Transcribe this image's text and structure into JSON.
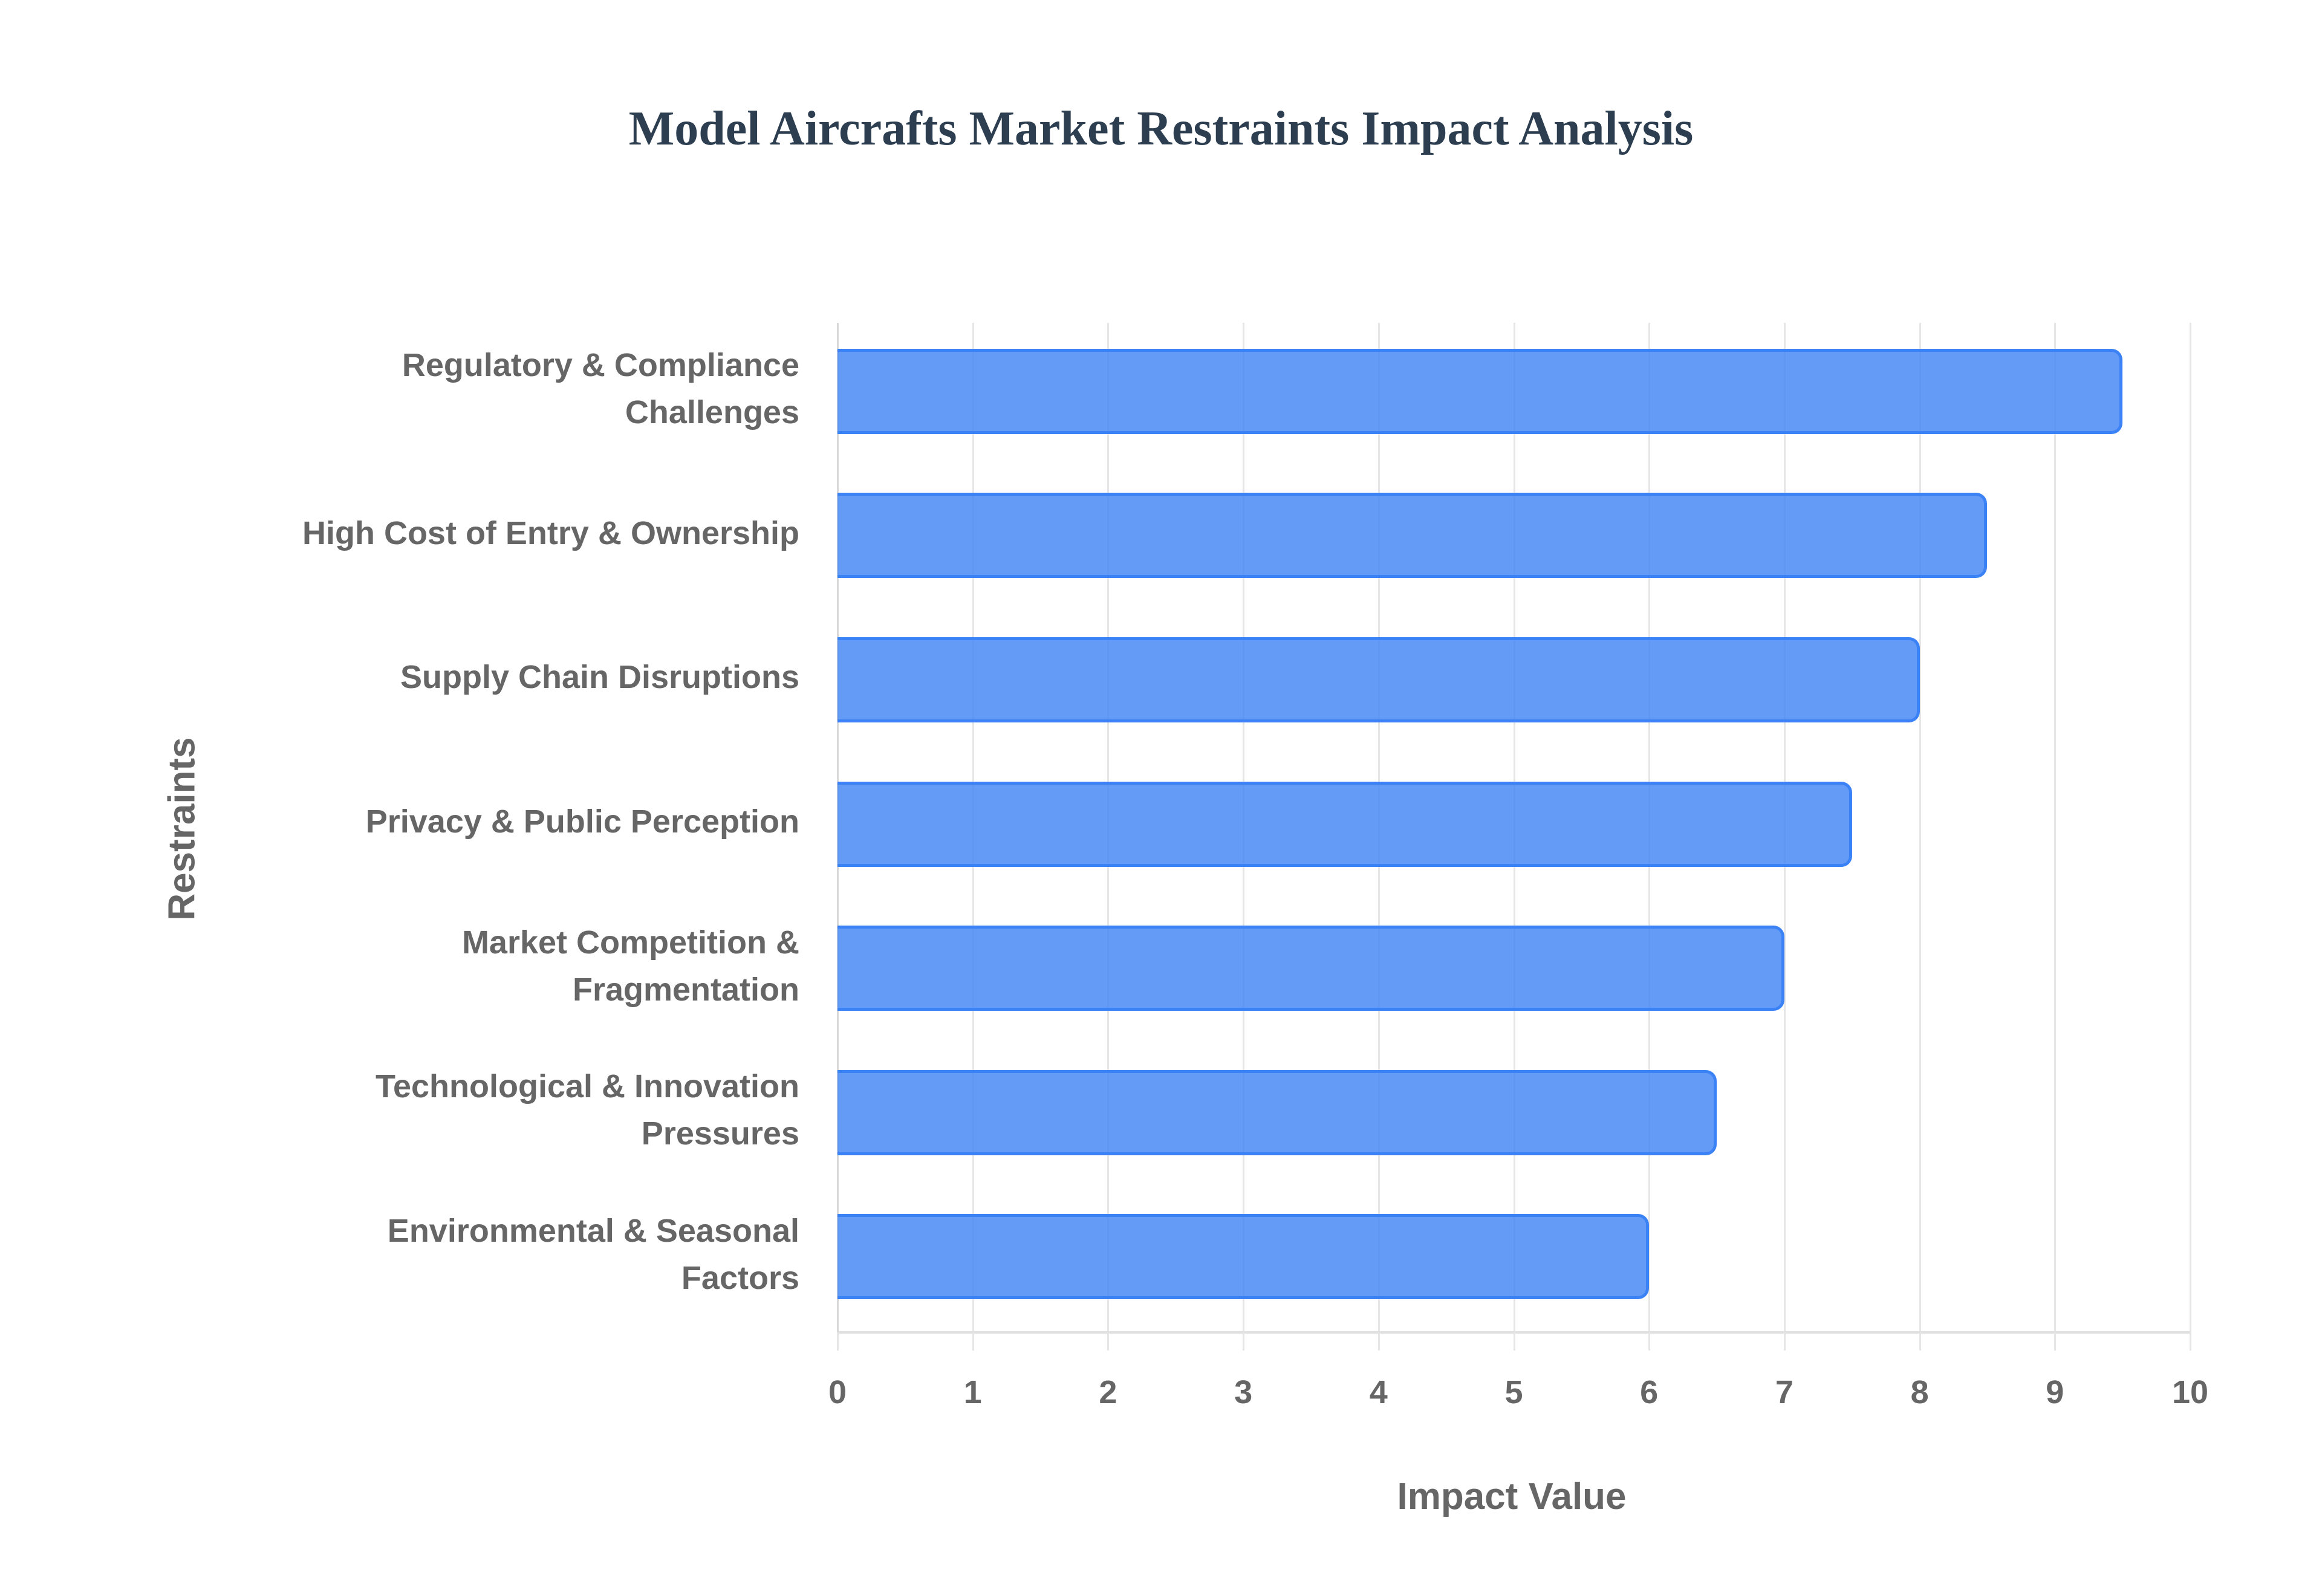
{
  "title": "Model Aircrafts Market Restraints Impact Analysis",
  "chart_data": {
    "type": "bar",
    "orientation": "horizontal",
    "title": "Model Aircrafts Market Restraints Impact Analysis",
    "xlabel": "Impact Value",
    "ylabel": "Restraints",
    "xlim": [
      0,
      10
    ],
    "x_ticks": [
      "0",
      "1",
      "2",
      "3",
      "4",
      "5",
      "6",
      "7",
      "8",
      "9",
      "10"
    ],
    "grid": true,
    "legend": null,
    "bar_color": "#5b96f5",
    "bar_border_color": "#3b82f6",
    "categories": [
      "Regulatory & Compliance Challenges",
      "High Cost of Entry & Ownership",
      "Supply Chain Disruptions",
      "Privacy & Public Perception",
      "Market Competition & Fragmentation",
      "Technological & Innovation Pressures",
      "Environmental & Seasonal Factors"
    ],
    "category_lines": [
      [
        "Regulatory & Compliance",
        "Challenges"
      ],
      [
        "High Cost of Entry & Ownership"
      ],
      [
        "Supply Chain Disruptions"
      ],
      [
        "Privacy & Public Perception"
      ],
      [
        "Market Competition &",
        "Fragmentation"
      ],
      [
        "Technological & Innovation",
        "Pressures"
      ],
      [
        "Environmental & Seasonal",
        "Factors"
      ]
    ],
    "values": [
      9.5,
      8.5,
      8.0,
      7.5,
      7.0,
      6.5,
      6.0
    ]
  },
  "axes": {
    "x_title": "Impact Value",
    "y_title": "Restraints"
  }
}
